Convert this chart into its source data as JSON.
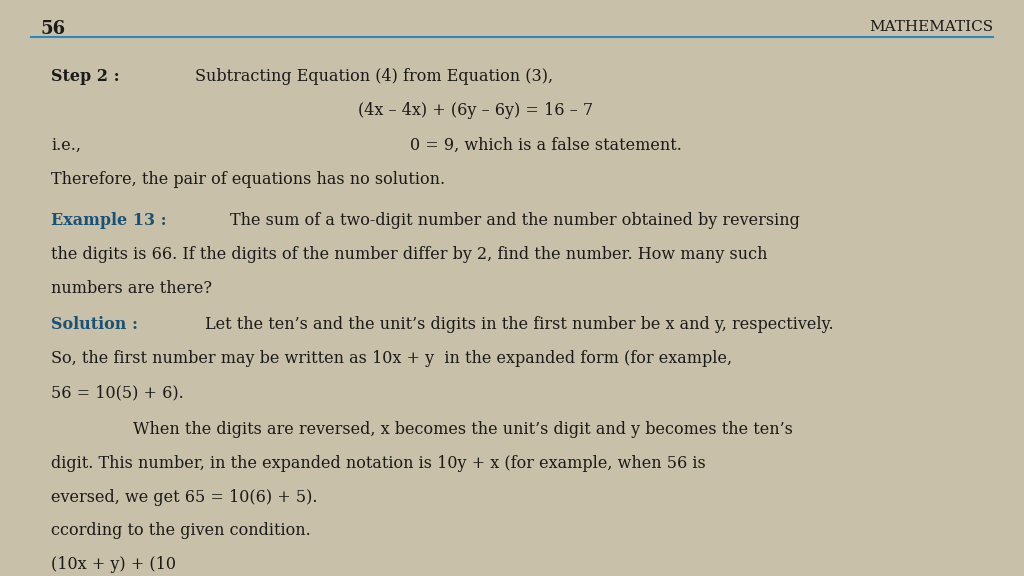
{
  "page_number": "56",
  "header_right": "MATHEMATICS",
  "background_color": "#c8c0a8",
  "text_color": "#1a1a1a",
  "blue_color": "#1a5276",
  "header_line_color": "#2e86c1",
  "step2_bold": "Step 2 : ",
  "step2_rest": "Subtracting Equation (4) from Equation (3),",
  "eq_line": "(4x – 4x) + (6y – 6y) = 16 – 7",
  "ie_label": "i.e.,",
  "ie_eq": "0 = 9, which is a false statement.",
  "therefore_line": "Therefore, the pair of equations has no solution.",
  "example13_bold": "Example 13 : ",
  "example13_text1": "The sum of a two-digit number and the number obtained by reversing",
  "example13_text2": "the digits is 66. If the digits of the number differ by 2, find the number. How many such",
  "example13_text3": "numbers are there?",
  "solution_bold": "Solution : ",
  "solution_text1": "Let the ten’s and the unit’s digits in the first number be x and y, respectively.",
  "solution_text2": "So, the first number may be written as 10x + y  in the expanded form (for example,",
  "solution_text3": "56 = 10(5) + 6).",
  "when_text1": "When the digits are reversed, x becomes the unit’s digit and y becomes the ten’s",
  "when_text2": "digit. This number, in the expanded notation is 10y + x (for example, when 56 is",
  "when_text3": "eversed, we get 65 = 10(6) + 5).",
  "ccording_text": "ccording to the given condition.",
  "bottom_text": "(10x + y) + (10"
}
